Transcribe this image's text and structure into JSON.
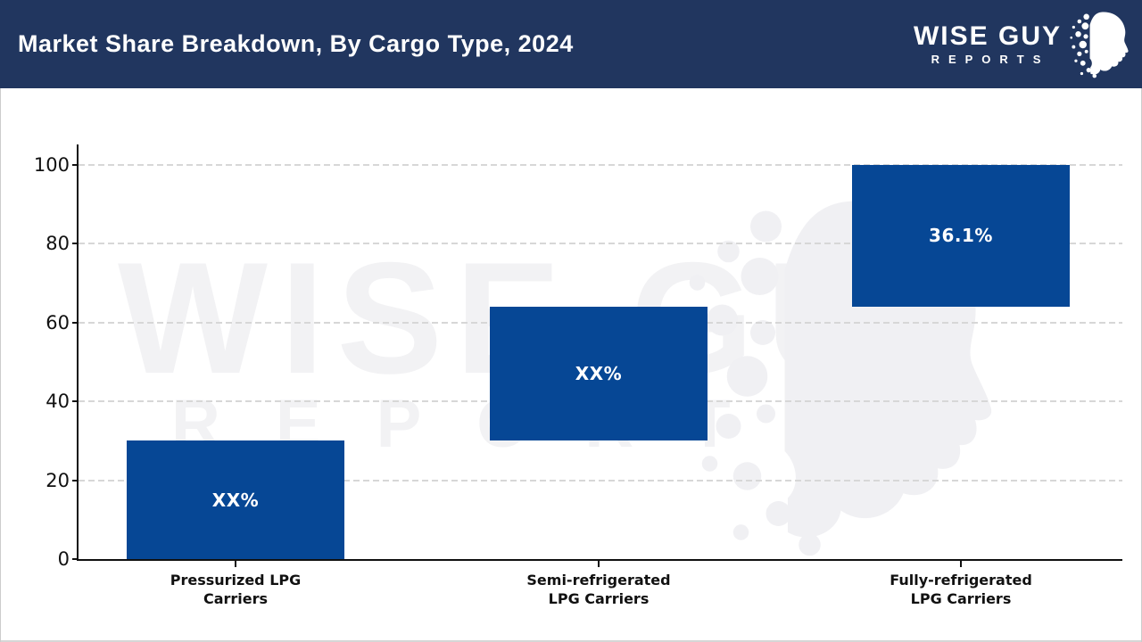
{
  "header": {
    "title": "Market Share Breakdown, By Cargo Type, 2024",
    "bg_color": "#21365f",
    "logo": {
      "name_top": "WISE GUY",
      "name_bottom": "REPORTS"
    }
  },
  "watermark": {
    "line1": "WISE GUY",
    "line2": "REPORTS"
  },
  "chart_data": {
    "type": "bar",
    "subtype": "stacked-waterfall",
    "title": "Market Share Breakdown, By Cargo Type, 2024",
    "categories": [
      "Pressurized LPG Carriers",
      "Semi-refrigerated LPG Carriers",
      "Fully-refrigerated LPG Carriers"
    ],
    "category_lines": [
      [
        "Pressurized LPG",
        "Carriers"
      ],
      [
        "Semi-refrigerated",
        "LPG Carriers"
      ],
      [
        "Fully-refrigerated",
        "LPG Carriers"
      ]
    ],
    "segments": [
      {
        "category": "Pressurized LPG Carriers",
        "from": 0,
        "to": 30,
        "label": "XX%"
      },
      {
        "category": "Semi-refrigerated LPG Carriers",
        "from": 30,
        "to": 63.9,
        "label": "XX%"
      },
      {
        "category": "Fully-refrigerated LPG Carriers",
        "from": 63.9,
        "to": 100,
        "label": "36.1%"
      }
    ],
    "value_labels": [
      "XX%",
      "XX%",
      "36.1%"
    ],
    "yticks": [
      0,
      20,
      40,
      60,
      80,
      100
    ],
    "ylim": [
      0,
      105
    ],
    "xlabel": "",
    "ylabel": "",
    "grid": "horizontal-dashed",
    "legend": "none",
    "bar_color": "#064795",
    "grid_color": "#d7d7d7",
    "axis_color": "#111111"
  }
}
